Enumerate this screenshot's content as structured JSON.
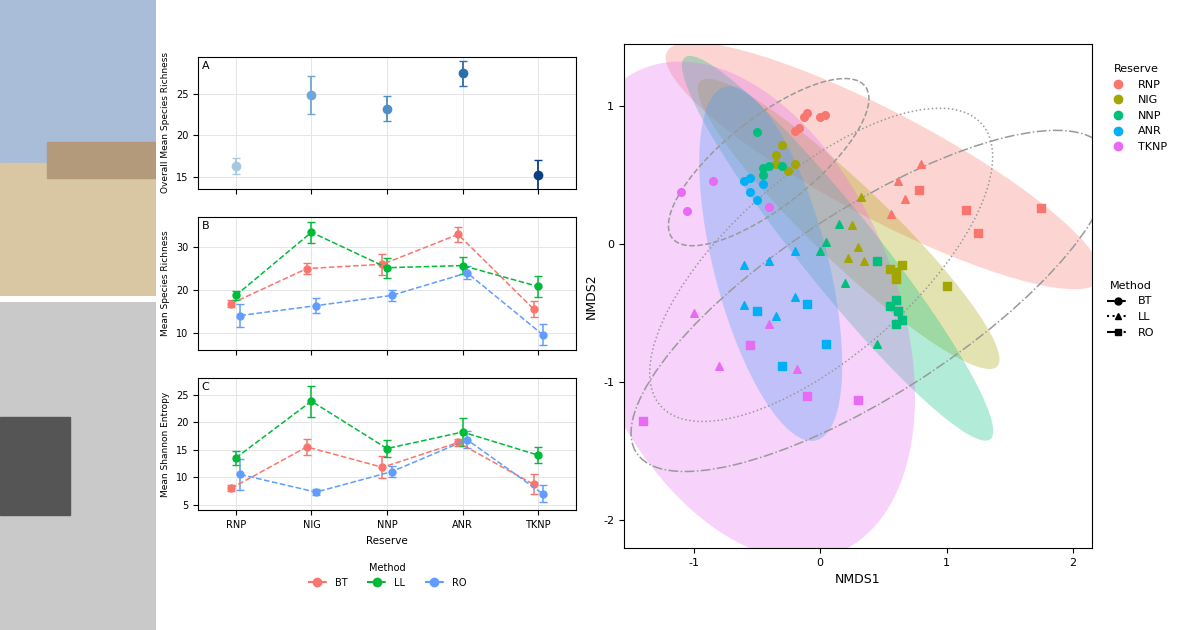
{
  "chart_data": [
    {
      "type": "errorbar",
      "panel_label": "A",
      "ylabel": "Overall Mean Species Richness",
      "categories": [
        "RNP",
        "NIG",
        "NNP",
        "ANR",
        "TKNP"
      ],
      "values": [
        16.3,
        24.9,
        23.2,
        27.5,
        15.2
      ],
      "errors": [
        1.0,
        2.3,
        1.5,
        1.5,
        1.8
      ],
      "colors": [
        "#a6c8e0",
        "#6fa8d6",
        "#4f8fc5",
        "#2d6fad",
        "#0b3f80"
      ],
      "marker": "circle",
      "ylim": [
        13.5,
        29.5
      ],
      "yticks": [
        15,
        20,
        25
      ],
      "grid": true,
      "tick_labels": "y"
    },
    {
      "type": "line",
      "panel_label": "B",
      "ylabel": "Mean Species Richness",
      "categories": [
        "RNP",
        "NIG",
        "NNP",
        "ANR",
        "TKNP"
      ],
      "series": [
        {
          "name": "BT",
          "color": "#F8766D",
          "values": [
            16.8,
            25.0,
            26.0,
            33.0,
            15.5
          ],
          "errors": [
            0.8,
            1.2,
            2.5,
            1.8,
            1.8
          ],
          "marker": "circle",
          "line_style": "dashed"
        },
        {
          "name": "LL",
          "color": "#00BA38",
          "values": [
            18.7,
            33.5,
            25.2,
            25.7,
            20.8
          ],
          "errors": [
            1.0,
            2.5,
            2.3,
            2.0,
            2.5
          ],
          "marker": "circle",
          "line_style": "dashed"
        },
        {
          "name": "RO",
          "color": "#619CFF",
          "values": [
            14.0,
            16.3,
            18.7,
            24.0,
            9.5
          ],
          "errors": [
            2.8,
            1.8,
            1.2,
            1.5,
            2.5
          ],
          "marker": "circle",
          "line_style": "dashed"
        }
      ],
      "ylim": [
        6,
        37
      ],
      "yticks": [
        10,
        20,
        30
      ],
      "grid": true,
      "tick_labels": "y"
    },
    {
      "type": "line",
      "panel_label": "C",
      "ylabel": "Mean Shannon Entropy",
      "xlabel": "Reserve",
      "categories": [
        "RNP",
        "NIG",
        "NNP",
        "ANR",
        "TKNP"
      ],
      "series": [
        {
          "name": "BT",
          "color": "#F8766D",
          "values": [
            8.0,
            15.5,
            11.8,
            16.3,
            8.7
          ],
          "errors": [
            0.5,
            1.5,
            2.0,
            0.6,
            1.8
          ],
          "marker": "circle",
          "line_style": "dashed"
        },
        {
          "name": "LL",
          "color": "#00BA38",
          "values": [
            13.5,
            23.8,
            15.2,
            18.2,
            14.0
          ],
          "errors": [
            1.3,
            2.8,
            1.5,
            2.5,
            1.5
          ],
          "marker": "circle",
          "line_style": "dashed"
        },
        {
          "name": "RO",
          "color": "#619CFF",
          "values": [
            10.5,
            7.3,
            11.0,
            16.8,
            7.0
          ],
          "errors": [
            2.8,
            0.5,
            1.0,
            1.5,
            1.5
          ],
          "marker": "circle",
          "line_style": "dashed"
        }
      ],
      "legend_title": "Method",
      "legend": "bottom",
      "ylim": [
        4,
        28
      ],
      "yticks": [
        5,
        10,
        15,
        20,
        25
      ],
      "grid": true
    },
    {
      "type": "scatter",
      "xlabel": "NMDS1",
      "ylabel": "NMDS2",
      "xlim": [
        -1.55,
        2.15
      ],
      "xticks": [
        -1,
        0,
        1,
        2
      ],
      "ylim": [
        -2.2,
        1.45
      ],
      "yticks": [
        -2,
        -1,
        0,
        1
      ],
      "grid": false,
      "legend": "right",
      "legend_titles": {
        "color": "Reserve",
        "marker": "Method"
      },
      "methods": [
        {
          "name": "BT",
          "marker": "circle",
          "line_style": "dashed"
        },
        {
          "name": "LL",
          "marker": "triangle",
          "line_style": "dotted"
        },
        {
          "name": "RO",
          "marker": "square",
          "line_style": "dashdot"
        }
      ],
      "series": [
        {
          "name": "RNP",
          "color": "#F8766D",
          "x": [
            -0.17,
            -0.13,
            -0.1,
            0.04,
            -0.2,
            0.0,
            0.62,
            0.8,
            0.67,
            0.56,
            0.78,
            1.15,
            1.25,
            1.75
          ],
          "y": [
            0.84,
            0.92,
            0.95,
            0.94,
            0.82,
            0.92,
            0.46,
            0.58,
            0.33,
            0.22,
            0.39,
            0.25,
            0.08,
            0.26
          ],
          "method": [
            "BT",
            "BT",
            "BT",
            "BT",
            "BT",
            "BT",
            "LL",
            "LL",
            "LL",
            "LL",
            "RO",
            "RO",
            "RO",
            "RO"
          ]
        },
        {
          "name": "NIG",
          "color": "#A3A500",
          "x": [
            -0.35,
            -0.3,
            -0.25,
            -0.2,
            -0.35,
            0.32,
            0.25,
            0.3,
            0.35,
            0.22,
            0.55,
            0.6,
            0.65,
            1.0,
            0.6
          ],
          "y": [
            0.65,
            0.72,
            0.53,
            0.58,
            0.58,
            0.34,
            0.14,
            -0.02,
            -0.12,
            -0.1,
            -0.18,
            -0.2,
            -0.15,
            -0.3,
            -0.25
          ],
          "method": [
            "BT",
            "BT",
            "BT",
            "BT",
            "BT",
            "LL",
            "LL",
            "LL",
            "LL",
            "LL",
            "RO",
            "RO",
            "RO",
            "RO",
            "RO"
          ]
        },
        {
          "name": "NNP",
          "color": "#00BF7D",
          "x": [
            -0.5,
            -0.45,
            -0.4,
            -0.3,
            -0.45,
            0.05,
            0.15,
            0.2,
            0.0,
            0.45,
            0.45,
            0.6,
            0.65,
            0.6,
            0.55,
            0.62
          ],
          "y": [
            0.81,
            0.55,
            0.57,
            0.57,
            0.5,
            0.02,
            0.15,
            -0.28,
            -0.05,
            -0.72,
            -0.12,
            -0.4,
            -0.55,
            -0.58,
            -0.45,
            -0.48
          ],
          "method": [
            "BT",
            "BT",
            "BT",
            "BT",
            "BT",
            "LL",
            "LL",
            "LL",
            "LL",
            "LL",
            "RO",
            "RO",
            "RO",
            "RO",
            "RO",
            "RO"
          ]
        },
        {
          "name": "ANR",
          "color": "#00B0F6",
          "x": [
            -0.6,
            -0.55,
            -0.5,
            -0.45,
            -0.55,
            -0.6,
            -0.4,
            -0.2,
            -0.35,
            -0.6,
            -0.2,
            -0.1,
            -0.5,
            -0.3,
            0.05
          ],
          "y": [
            0.46,
            0.48,
            0.32,
            0.44,
            0.38,
            -0.15,
            -0.12,
            -0.05,
            -0.52,
            -0.44,
            -0.38,
            -0.43,
            -0.48,
            -0.88,
            -0.72
          ],
          "method": [
            "BT",
            "BT",
            "BT",
            "BT",
            "BT",
            "LL",
            "LL",
            "LL",
            "LL",
            "LL",
            "LL",
            "RO",
            "RO",
            "RO",
            "RO"
          ]
        },
        {
          "name": "TKNP",
          "color": "#E76BF3",
          "x": [
            -1.1,
            -1.05,
            -0.85,
            -0.4,
            -1.0,
            -0.8,
            -0.4,
            -0.18,
            -1.4,
            -0.55,
            -0.1,
            0.3
          ],
          "y": [
            0.38,
            0.24,
            0.46,
            0.27,
            -0.5,
            -0.88,
            -0.58,
            -0.9,
            -1.28,
            -0.73,
            -1.1,
            -1.13
          ],
          "method": [
            "BT",
            "BT",
            "BT",
            "BT",
            "LL",
            "LL",
            "LL",
            "LL",
            "RO",
            "RO",
            "RO",
            "RO"
          ]
        }
      ]
    }
  ]
}
